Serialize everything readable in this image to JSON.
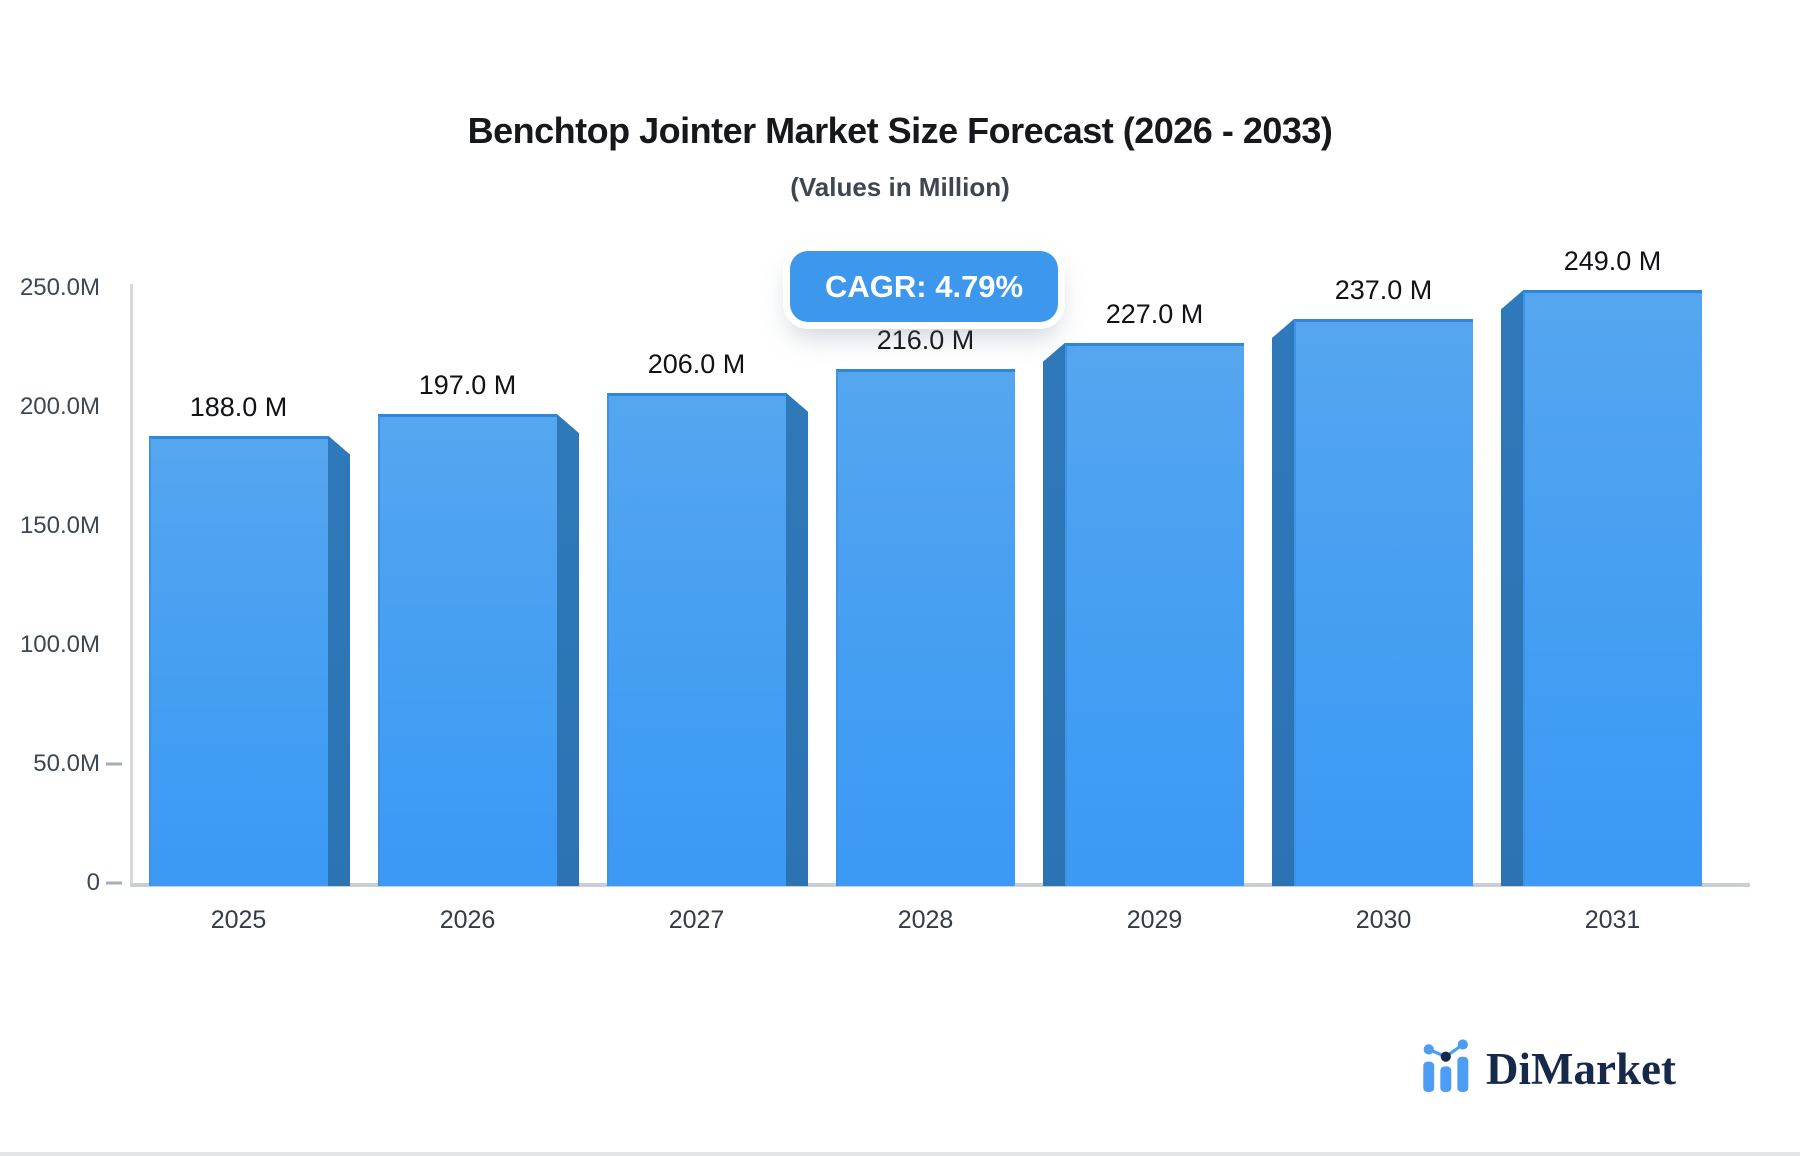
{
  "header": {
    "title": "Benchtop Jointer Market Size Forecast (2026 - 2033)",
    "subtitle": "(Values in Million)"
  },
  "cagr_badge": {
    "label": "CAGR: 4.79%"
  },
  "chart_data": {
    "type": "bar",
    "title": "Benchtop Jointer Market Size Forecast (2026 - 2033)",
    "subtitle": "(Values in Million)",
    "categories": [
      "2025",
      "2026",
      "2027",
      "2028",
      "2029",
      "2030",
      "2031"
    ],
    "values": [
      188,
      197,
      206,
      216,
      227,
      237,
      249
    ],
    "value_labels": [
      "188.0 M",
      "197.0 M",
      "206.0 M",
      "216.0 M",
      "227.0 M",
      "237.0 M",
      "249.0 M"
    ],
    "xlabel": "",
    "ylabel": "",
    "ylim": [
      0,
      250
    ],
    "yticks": [
      {
        "label": "250.0M",
        "value": 250,
        "dash": false
      },
      {
        "label": "200.0M",
        "value": 200,
        "dash": false
      },
      {
        "label": "150.0M",
        "value": 150,
        "dash": false
      },
      {
        "label": "100.0M",
        "value": 100,
        "dash": false
      },
      {
        "label": "50.0M",
        "value": 50,
        "dash": true
      },
      {
        "label": "0",
        "value": 0,
        "dash": true
      }
    ],
    "grid": false,
    "legend": false,
    "annotation": "CAGR: 4.79%"
  },
  "branding": {
    "logo_text": "DiMarket",
    "logo_icon": "bar-chart-icon"
  },
  "colors": {
    "bar_face": "#449ef2",
    "bar_face_light": "#55a6ef",
    "bar_edge": "#2e87da",
    "bar_side": "#2c73b3",
    "badge_bg": "#3d98ed",
    "badge_text": "#ffffff",
    "axis_line": "#d6d9df",
    "baseline": "#c9cdd5",
    "y_label": "#3d4754",
    "x_label": "#333b46",
    "title": "#17181b",
    "logo_navy": "#16294a",
    "logo_blue": "#4d9df5"
  }
}
